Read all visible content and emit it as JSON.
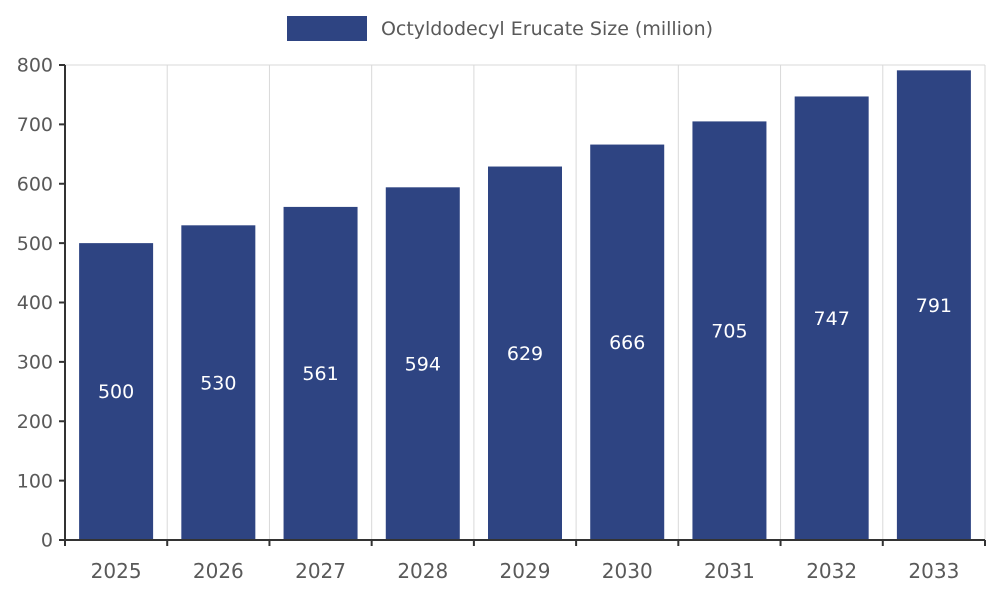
{
  "chart_data": {
    "type": "bar",
    "title": "Octyldodecyl Erucate Size (million)",
    "legend_label": "Octyldodecyl Erucate Size (million)",
    "categories": [
      "2025",
      "2026",
      "2027",
      "2028",
      "2029",
      "2030",
      "2031",
      "2032",
      "2033"
    ],
    "values": [
      500,
      530,
      561,
      594,
      629,
      666,
      705,
      747,
      791
    ],
    "xlabel": "",
    "ylabel": "",
    "ylim": [
      0,
      800
    ],
    "ytick_step": 100,
    "yticks": [
      0,
      100,
      200,
      300,
      400,
      500,
      600,
      700,
      800
    ],
    "legend_position": "top",
    "grid": "vertical",
    "colors": {
      "bar": "#2e4482",
      "axis_line": "#333333",
      "gridline": "#d9d9d9",
      "tick_label": "#595959",
      "value_label": "#ffffff",
      "legend_text": "#595959"
    }
  }
}
